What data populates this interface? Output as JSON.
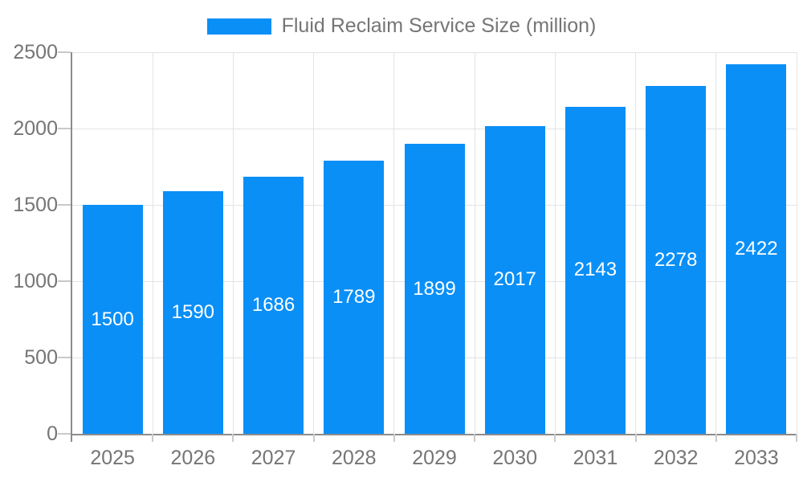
{
  "chart_data": {
    "type": "bar",
    "title": "Fluid Reclaim Service Size (million)",
    "categories": [
      "2025",
      "2026",
      "2027",
      "2028",
      "2029",
      "2030",
      "2031",
      "2032",
      "2033"
    ],
    "values": [
      1500,
      1590,
      1686,
      1789,
      1899,
      2017,
      2143,
      2278,
      2422
    ],
    "xlabel": "",
    "ylabel": "",
    "ylim": [
      0,
      2500
    ],
    "yticks": [
      0,
      500,
      1000,
      1500,
      2000,
      2500
    ],
    "bar_color": "#0a8ff7",
    "value_label_color": "#ffffff",
    "axis_text_color": "#757575",
    "grid": "on",
    "legend_position": "top",
    "value_labels": "inside-center"
  }
}
